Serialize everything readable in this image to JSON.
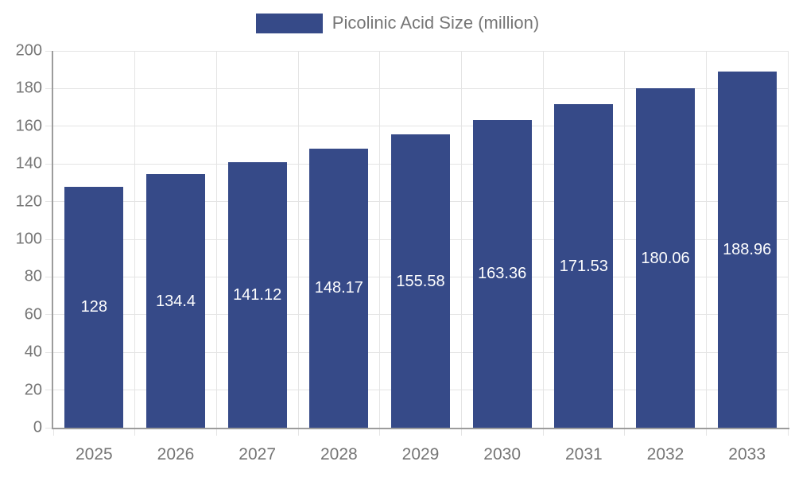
{
  "chart_data": {
    "type": "bar",
    "title": "Picolinic Acid Size (million)",
    "legend_position": "top-center",
    "categories": [
      "2025",
      "2026",
      "2027",
      "2028",
      "2029",
      "2030",
      "2031",
      "2032",
      "2033"
    ],
    "values": [
      128,
      134.4,
      141.12,
      148.17,
      155.58,
      163.36,
      171.53,
      180.06,
      188.96
    ],
    "value_labels": [
      "128",
      "134.4",
      "141.12",
      "148.17",
      "155.58",
      "163.36",
      "171.53",
      "180.06",
      "188.96"
    ],
    "xlabel": "",
    "ylabel": "",
    "ylim": [
      0,
      200
    ],
    "ytick_step": 20,
    "grid": true
  },
  "colors": {
    "background": "#ffffff",
    "bar": "#364a88",
    "grid": "#e4e4e4",
    "axis": "#9c9c9c",
    "tick_label": "#757575",
    "legend_text": "#767676",
    "value_label": "#ffffff"
  }
}
